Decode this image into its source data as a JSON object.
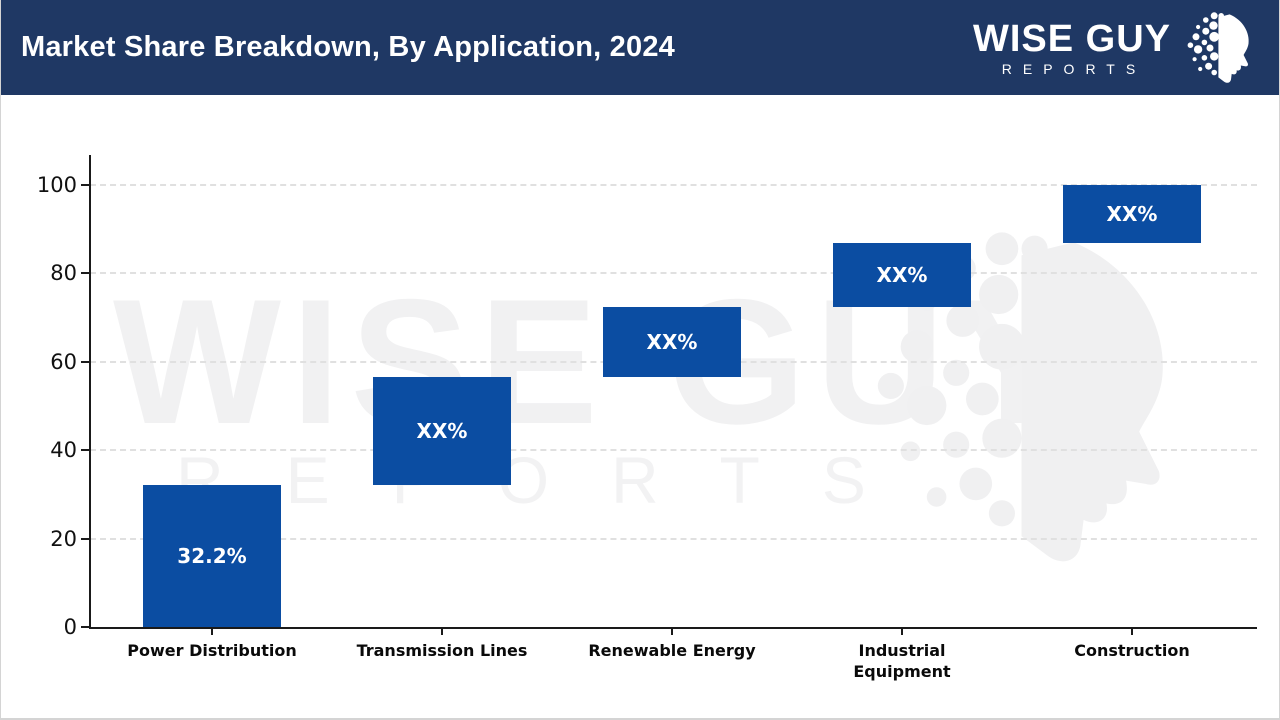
{
  "header": {
    "title": "Market Share Breakdown, By Application, 2024",
    "bg_color": "#1f3864",
    "logo": {
      "line1": "WISE GUY",
      "line2": "REPORTS"
    }
  },
  "watermark": {
    "line1": "WISE GUY",
    "line2": "REPORTS"
  },
  "chart_data": {
    "type": "bar",
    "subtype": "waterfall",
    "title": "Market Share Breakdown, By Application, 2024",
    "xlabel": "",
    "ylabel": "",
    "categories": [
      "Power Distribution",
      "Transmission Lines",
      "Renewable Energy",
      "Industrial Equipment",
      "Construction"
    ],
    "xtick_display": [
      "Power Distribution",
      "Transmission Lines",
      "Renewable Energy",
      "Industrial\nEquipment",
      "Construction"
    ],
    "series": [
      {
        "name": "Market Share (%)",
        "segments": [
          {
            "category": "Power Distribution",
            "label": "32.2%",
            "start": 0,
            "end": 32.2
          },
          {
            "category": "Transmission Lines",
            "label": "XX%",
            "start": 32.2,
            "end": 56.5
          },
          {
            "category": "Renewable Energy",
            "label": "XX%",
            "start": 56.5,
            "end": 72.3
          },
          {
            "category": "Industrial Equipment",
            "label": "XX%",
            "start": 72.3,
            "end": 86.8
          },
          {
            "category": "Construction",
            "label": "XX%",
            "start": 86.8,
            "end": 100
          }
        ]
      }
    ],
    "bar_labels": [
      "32.2%",
      "XX%",
      "XX%",
      "XX%",
      "XX%"
    ],
    "y_ticks": [
      0,
      20,
      40,
      60,
      80,
      100
    ],
    "ylim": [
      0,
      107
    ],
    "grid": "horizontal dashed",
    "legend": "none",
    "bar_color": "#0b4da2",
    "axis_color": "#1a1a1a",
    "grid_color": "#e0e0e0"
  }
}
